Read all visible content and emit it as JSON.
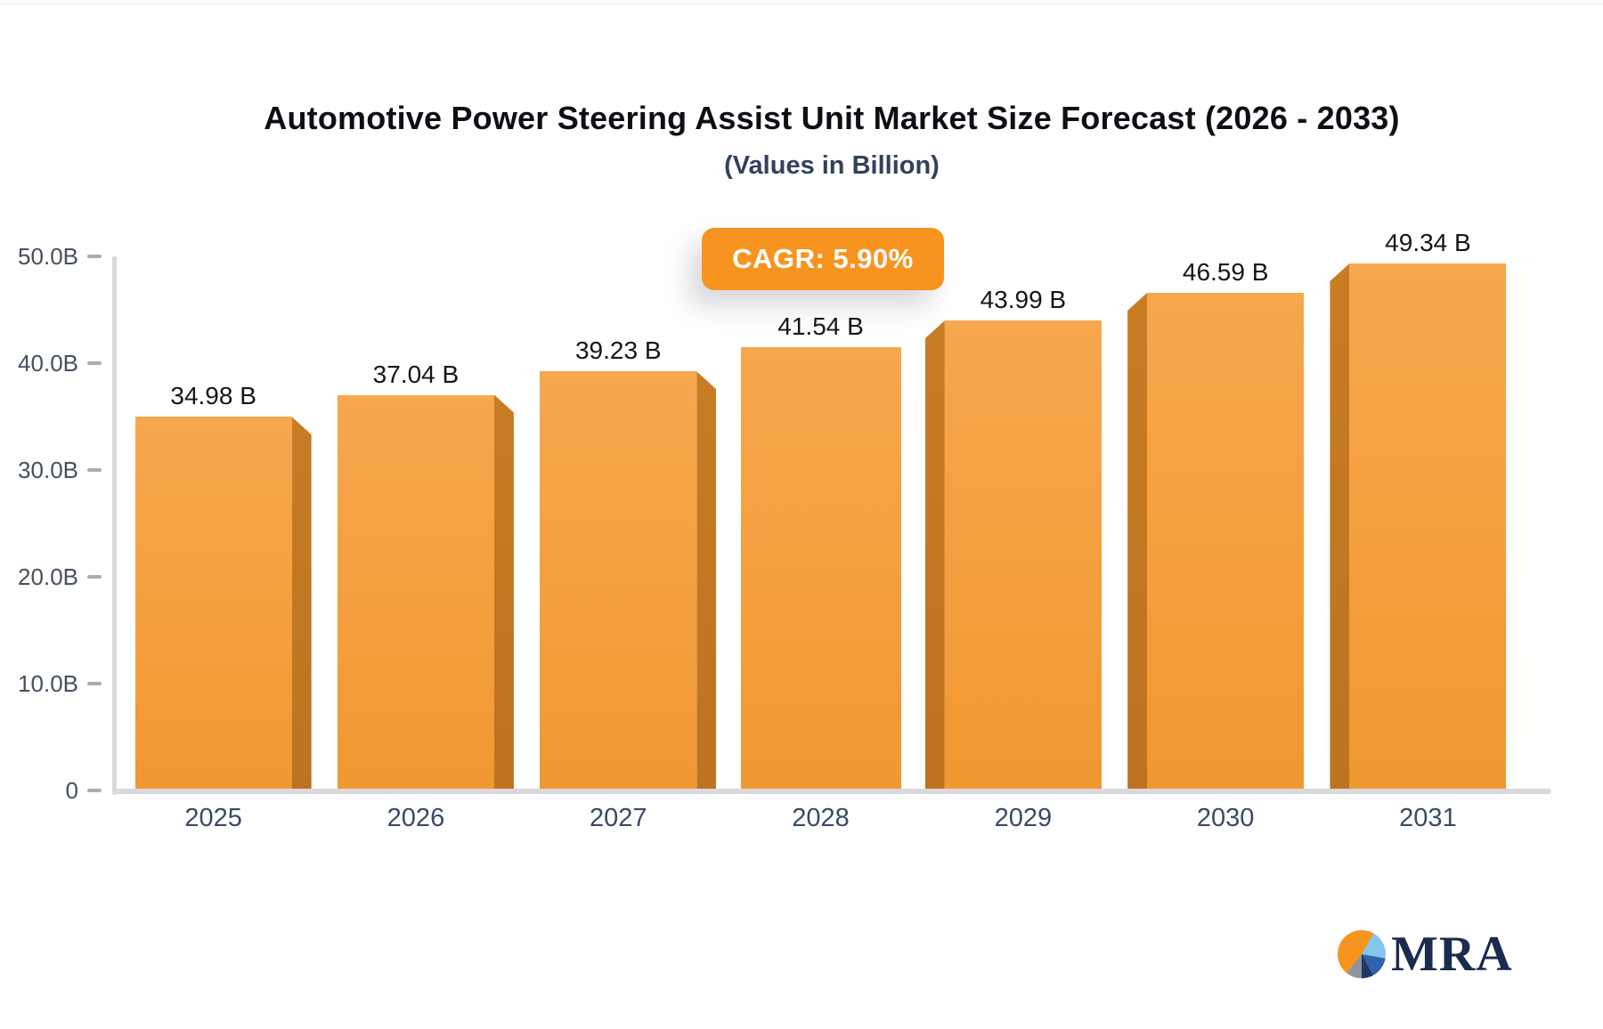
{
  "header": {
    "title": "Automotive Power Steering Assist Unit Market Size Forecast (2026 - 2033)",
    "subtitle": "(Values in Billion)"
  },
  "badge": {
    "label": "CAGR: 5.90%"
  },
  "chart_data": {
    "type": "bar",
    "title": "Automotive Power Steering Assist Unit Market Size Forecast (2026 - 2033)",
    "subtitle": "(Values in Billion)",
    "annotation": "CAGR: 5.90%",
    "categories": [
      "2025",
      "2026",
      "2027",
      "2028",
      "2029",
      "2030",
      "2031"
    ],
    "values": [
      34.98,
      37.04,
      39.23,
      41.54,
      43.99,
      46.59,
      49.34
    ],
    "value_labels": [
      "34.98 B",
      "37.04 B",
      "39.23 B",
      "41.54 B",
      "43.99 B",
      "46.59 B",
      "49.34 B"
    ],
    "unit": "Billion",
    "xlabel": "",
    "ylabel": "",
    "ylim": [
      0,
      50
    ],
    "y_ticks": {
      "values": [
        0,
        10,
        20,
        30,
        40,
        50
      ],
      "labels": [
        "0",
        "10.0B",
        "20.0B",
        "30.0B",
        "40.0B",
        "50.0B"
      ]
    },
    "grid": false,
    "legend": false
  },
  "logo": {
    "text": "MRA"
  },
  "colors": {
    "bar_face": "#f5a041",
    "bar_side": "#c0761f",
    "badge_bg": "#f7941f",
    "badge_text": "#ffffff",
    "axis": "#d9d9dd",
    "tick": "#a7adb8",
    "title_text": "#0d0f14",
    "subtitle_text": "#33415c",
    "axis_label_text": "#474f5f",
    "category_text": "#3a4a66",
    "value_text": "#15161a",
    "logo_navy": "#1b2b4d",
    "logo_orange": "#f7941e"
  }
}
